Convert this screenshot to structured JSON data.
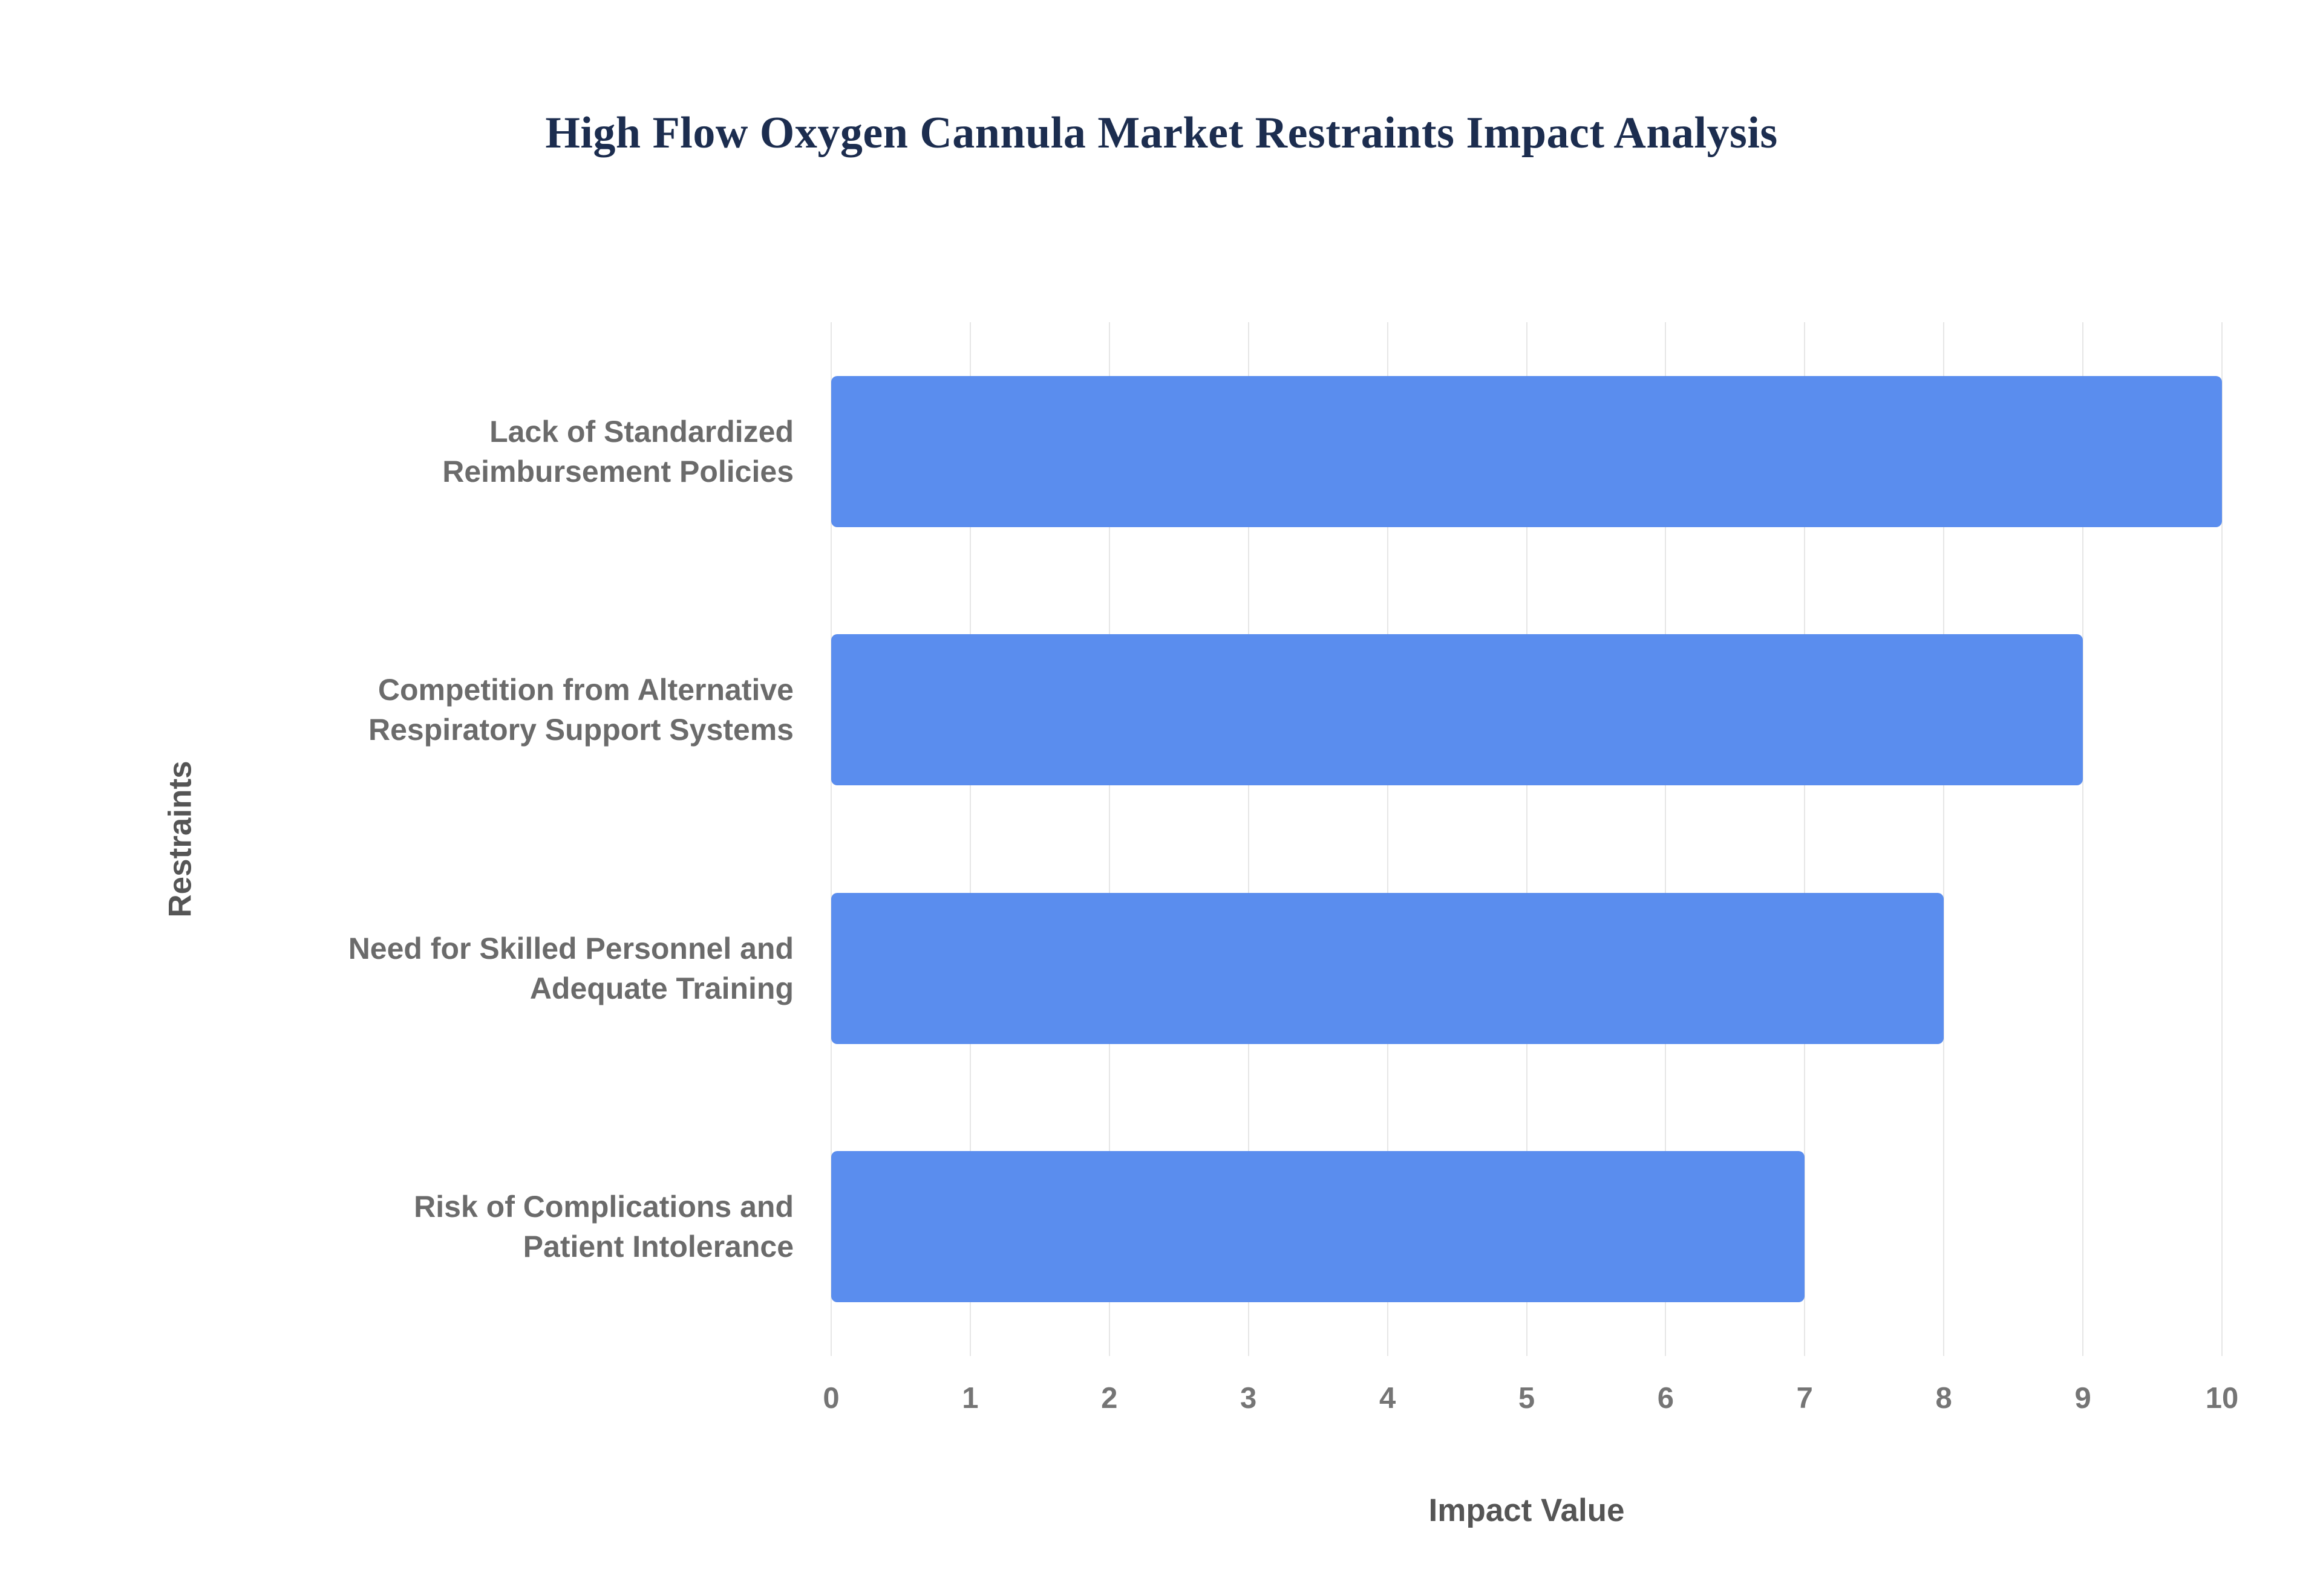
{
  "page": {
    "background": "#ffffff"
  },
  "chart_data": {
    "type": "bar",
    "orientation": "horizontal",
    "title": "High Flow Oxygen Cannula Market Restraints Impact Analysis",
    "xlabel": "Impact Value",
    "ylabel": "Restraints",
    "categories": [
      "Lack of Standardized Reimbursement Policies",
      "Competition from Alternative Respiratory Support Systems",
      "Need for Skilled Personnel and Adequate Training",
      "Risk of Complications and Patient Intolerance"
    ],
    "category_lines": [
      [
        "Lack of Standardized",
        "Reimbursement Policies"
      ],
      [
        "Competition from Alternative",
        "Respiratory Support Systems"
      ],
      [
        "Need for Skilled Personnel and",
        "Adequate Training"
      ],
      [
        "Risk of Complications and",
        "Patient Intolerance"
      ]
    ],
    "values": [
      10,
      9,
      8,
      7
    ],
    "xlim": [
      0,
      10
    ],
    "xticks": [
      0,
      1,
      2,
      3,
      4,
      5,
      6,
      7,
      8,
      9,
      10
    ],
    "grid": true,
    "legend_position": "none",
    "bar_color": "#5a8dee",
    "colors": {
      "title": "#1c2d4f",
      "tick_label": "#757575",
      "category_label": "#6b6b6b",
      "axis_title": "#555555",
      "gridline": "#e6e6e6"
    }
  }
}
